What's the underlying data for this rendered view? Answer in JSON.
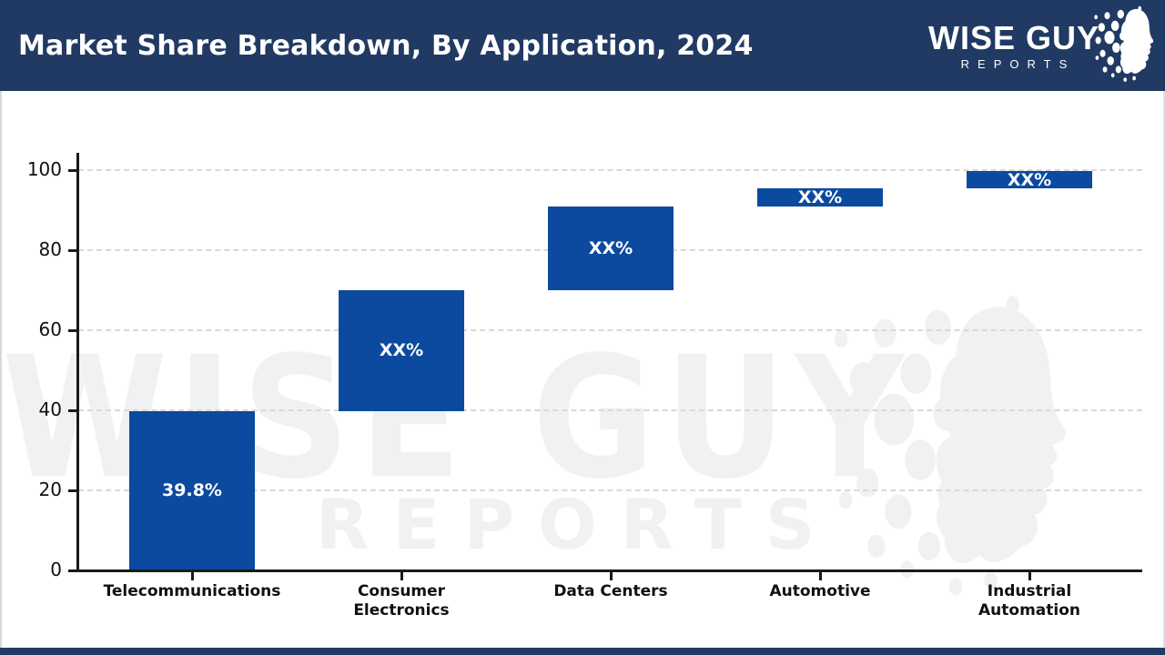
{
  "header": {
    "title": "Market Share Breakdown, By Application, 2024",
    "logo": {
      "line1": "WISE GUY",
      "line2": "REPORTS"
    }
  },
  "watermark": {
    "line1": "WISE GUY",
    "line2": "REPORTS"
  },
  "colors": {
    "header_bg": "#213A64",
    "footer_bg": "#213A64",
    "bar": "#0B4A9E",
    "bar_label": "#FFFFFF",
    "grid": "#D9D9D9",
    "axis": "#1A1A1A",
    "watermark": "#F0F1F3"
  },
  "chart_data": {
    "type": "bar",
    "subtype": "waterfall",
    "title": "Market Share Breakdown, By Application, 2024",
    "categories": [
      "Telecommunications",
      "Consumer Electronics",
      "Data Centers",
      "Automotive",
      "Industrial Automation"
    ],
    "segments": [
      {
        "category": "Telecommunications",
        "start": 0,
        "end": 39.8,
        "label": "39.8%"
      },
      {
        "category": "Consumer Electronics",
        "start": 39.8,
        "end": 70.0,
        "label": "XX%"
      },
      {
        "category": "Data Centers",
        "start": 70.0,
        "end": 91.0,
        "label": "XX%"
      },
      {
        "category": "Automotive",
        "start": 91.0,
        "end": 95.5,
        "label": "XX%"
      },
      {
        "category": "Industrial Automation",
        "start": 95.5,
        "end": 99.7,
        "label": "XX%"
      }
    ],
    "ylabel": "",
    "xlabel": "",
    "yticks": [
      0,
      20,
      40,
      60,
      80,
      100
    ],
    "ylim": [
      0,
      104.5
    ],
    "grid": "dashed-horizontal",
    "legend": "none",
    "bar_value_labels_inside": true
  }
}
